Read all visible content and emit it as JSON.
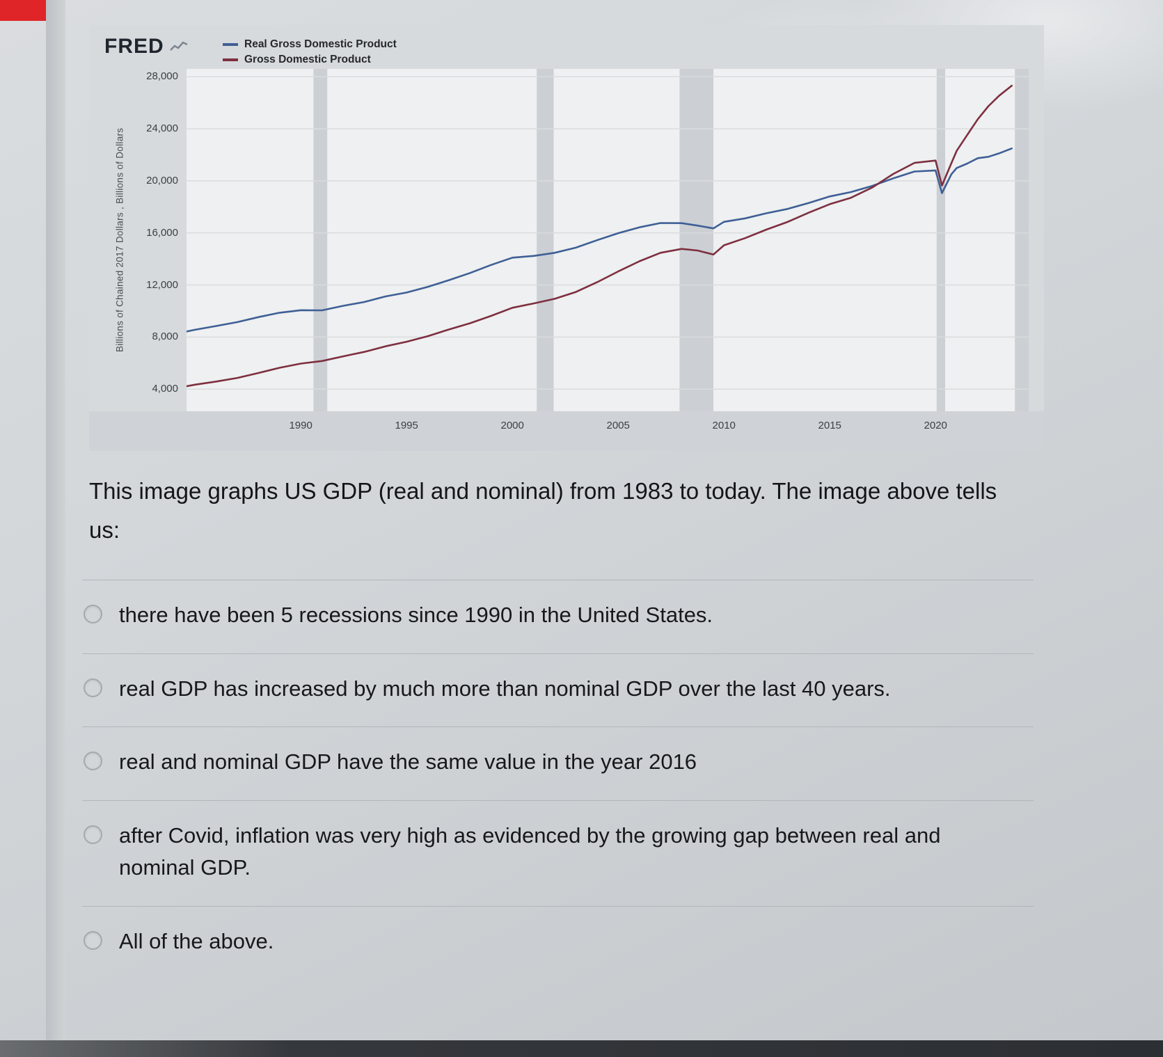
{
  "chart": {
    "brand": "FRED",
    "y_axis_label": "Billions of Chained 2017 Dollars , Billions of Dollars",
    "plot_bg": "#eef0f1",
    "band_color": "#ccd0d4",
    "grid_color": "#d9dcde",
    "axis_text_color": "#3c3f42"
  },
  "chart_data": {
    "type": "line",
    "title": "",
    "xlabel": "",
    "ylabel": "Billions of Chained 2017 Dollars , Billions of Dollars",
    "x": [
      1983,
      1984,
      1985,
      1986,
      1987,
      1988,
      1989,
      1990,
      1991,
      1992,
      1993,
      1994,
      1995,
      1996,
      1997,
      1998,
      1999,
      2000,
      2001,
      2002,
      2003,
      2004,
      2005,
      2006,
      2007,
      2008,
      2008.75,
      2009.5,
      2010,
      2011,
      2012,
      2013,
      2014,
      2015,
      2016,
      2017,
      2018,
      2019,
      2020,
      2020.3,
      2020.75,
      2021,
      2021.5,
      2022,
      2022.5,
      2023,
      2023.6
    ],
    "series": [
      {
        "name": "Real Gross Domestic Product",
        "color": "#3f5f96",
        "values": [
          7670,
          8220,
          8560,
          8850,
          9150,
          9530,
          9870,
          10060,
          10050,
          10400,
          10690,
          11120,
          11420,
          11850,
          12370,
          12920,
          13540,
          14100,
          14230,
          14470,
          14870,
          15440,
          15980,
          16430,
          16760,
          16750,
          16560,
          16350,
          16850,
          17120,
          17510,
          17840,
          18300,
          18800,
          19140,
          19610,
          20190,
          20715,
          20800,
          19060,
          20510,
          20990,
          21330,
          21740,
          21850,
          22110,
          22490
        ]
      },
      {
        "name": "Gross Domestic Product",
        "color": "#7e2f40",
        "values": [
          3630,
          4040,
          4340,
          4580,
          4860,
          5240,
          5640,
          5960,
          6160,
          6520,
          6860,
          7290,
          7640,
          8070,
          8580,
          9060,
          9630,
          10250,
          10580,
          10940,
          11460,
          12210,
          13040,
          13820,
          14470,
          14770,
          14650,
          14340,
          15050,
          15600,
          16250,
          16840,
          17550,
          18210,
          18700,
          19480,
          20530,
          21380,
          21560,
          19640,
          21360,
          22310,
          23530,
          24740,
          25740,
          26530,
          27310
        ]
      }
    ],
    "xlim": [
      1984.6,
      2024.4
    ],
    "ylim": [
      2300,
      28600
    ],
    "yticks": [
      4000,
      8000,
      12000,
      16000,
      20000,
      24000,
      28000
    ],
    "xticks": [
      1990,
      1995,
      2000,
      2005,
      2010,
      2015,
      2020
    ],
    "recession_bands": [
      [
        1990.6,
        1991.25
      ],
      [
        2001.15,
        2001.95
      ],
      [
        2007.9,
        2009.5
      ],
      [
        2020.05,
        2020.45
      ]
    ],
    "end_mask_start": 2023.75,
    "grid": true,
    "legend_position": "top-left"
  },
  "question": {
    "text": "This image graphs US GDP (real and nominal) from 1983 to today. The image above tells us:"
  },
  "options": [
    {
      "label": "there have been 5 recessions since 1990 in the United States."
    },
    {
      "label": "real GDP has increased by much more than nominal GDP over the last 40 years."
    },
    {
      "label": "real and nominal GDP have the same value in the year 2016"
    },
    {
      "label": "after Covid, inflation was very high as evidenced by the growing gap between real and nominal GDP."
    },
    {
      "label": "All of the above."
    }
  ]
}
